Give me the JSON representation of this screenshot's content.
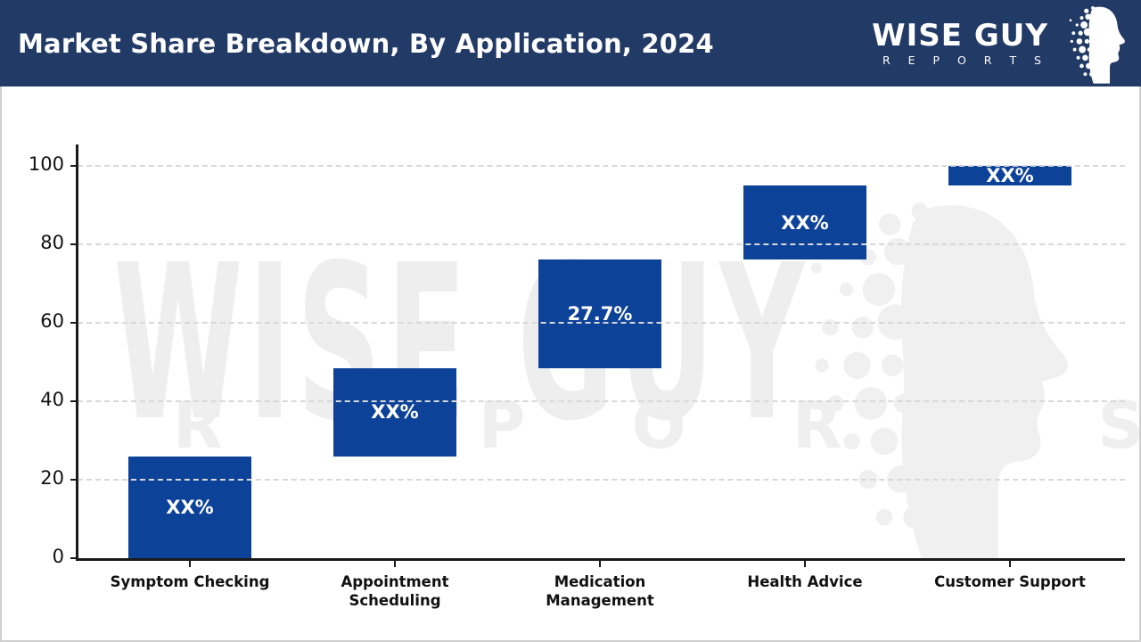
{
  "header": {
    "title": "Market Share Breakdown, By Application, 2024",
    "logo": {
      "line1": "WISE GUY",
      "line2": "R E P O R T S"
    }
  },
  "watermark": {
    "line1": "WISE GUY",
    "line2": "R E P O R T S"
  },
  "colors": {
    "header_bg": "#223a66",
    "bar": "#0d4299",
    "bar_label": "#ffffff",
    "gridline": "#d8d8d8",
    "axis": "#1a1a1a"
  },
  "chart_data": {
    "type": "bar",
    "subtype": "waterfall-floating-bars",
    "title": "Market Share Breakdown, By Application, 2024",
    "categories": [
      "Symptom Checking",
      "Appointment\nScheduling",
      "Medication\nManagement",
      "Health Advice",
      "Customer Support"
    ],
    "series": [
      {
        "name": "Market share (%)",
        "values": [
          26.0,
          22.4,
          27.7,
          18.8,
          5.1
        ],
        "segment_starts": [
          0,
          26.0,
          48.4,
          76.1,
          94.9
        ],
        "segment_ends": [
          26.0,
          48.4,
          76.1,
          94.9,
          100.0
        ],
        "labels": [
          "XX%",
          "XX%",
          "27.7%",
          "XX%",
          "XX%"
        ]
      }
    ],
    "xlabel": "",
    "ylabel": "",
    "ylim": [
      0,
      105
    ],
    "yticks": [
      0,
      20,
      40,
      60,
      80,
      100
    ],
    "grid": "horizontal-dashed",
    "grid_above_bars": true,
    "legend": "none"
  }
}
